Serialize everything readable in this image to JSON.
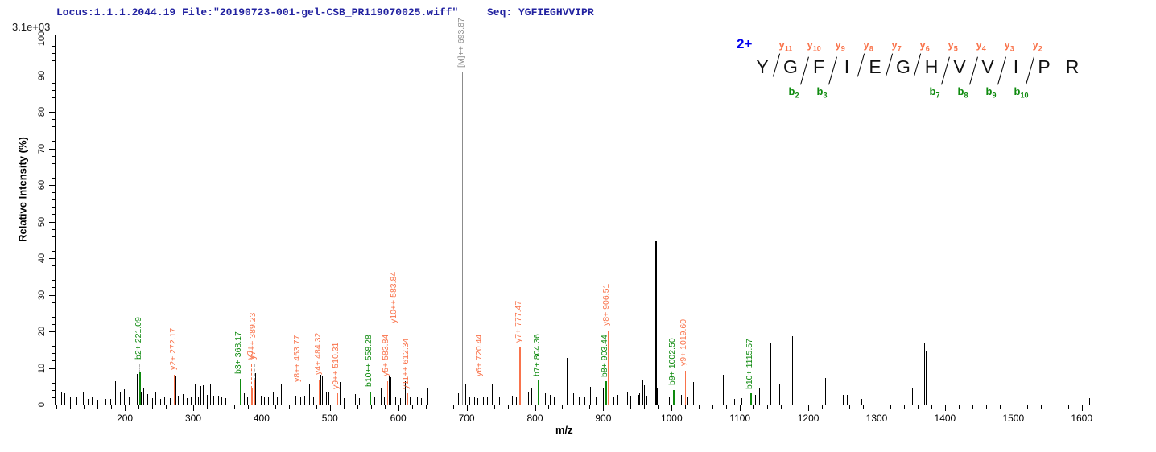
{
  "header": {
    "locus_file": "Locus:1.1.1.2044.19 File:\"20190723-001-gel-CSB_PR119070025.wiff\"",
    "seq_label": "Seq: YGFIEGHVVIPR"
  },
  "sequence_panel": {
    "charge_label": "2+",
    "y_prefix": "y",
    "b_prefix": "b",
    "residues": [
      "Y",
      "G",
      "F",
      "I",
      "E",
      "G",
      "H",
      "V",
      "V",
      "I",
      "P",
      "R"
    ],
    "gaps": [
      {
        "y": "11"
      },
      {
        "y": "10",
        "b": "2"
      },
      {
        "y": "9",
        "b": "3"
      },
      {
        "y": "8"
      },
      {
        "y": "7"
      },
      {
        "y": "6"
      },
      {
        "y": "5",
        "b": "7"
      },
      {
        "y": "4",
        "b": "8"
      },
      {
        "y": "3",
        "b": "9"
      },
      {
        "y": "2",
        "b": "10"
      },
      {}
    ]
  },
  "chart_data": {
    "type": "bar",
    "subtype": "ms2-centroid-spectrum",
    "title": "",
    "xlabel": "m/z",
    "ylabel": "Relative  Intensity (%)",
    "scale_label": "3.1e+03",
    "x_range": [
      100,
      1630
    ],
    "y_range": [
      0,
      100
    ],
    "x_major_ticks": [
      200,
      300,
      400,
      500,
      600,
      700,
      800,
      900,
      1000,
      1100,
      1200,
      1300,
      1400,
      1500,
      1600
    ],
    "x_minor_step": 20,
    "y_major_step": 10,
    "y_minor_step": 2,
    "grid": false,
    "colors": {
      "b_ion": "#0e8a0e",
      "y_ion": "#f9734b",
      "precursor": "#8c8c8c",
      "peak": "#000000"
    },
    "precursor": {
      "label": "[M]++ 693.87",
      "mz": 693.87,
      "pct": 91
    },
    "annotated_peaks": [
      {
        "label": "b2+ 221.09",
        "series": "b",
        "mz": 221.09,
        "pct": 8.8,
        "label_min": 11
      },
      {
        "label": "y2+ 272.17",
        "series": "y",
        "mz": 272.17,
        "pct": 8.2
      },
      {
        "label": "b3+ 368.17",
        "series": "b",
        "mz": 368.17,
        "pct": 7.0
      },
      {
        "label": "y3+",
        "series": "y",
        "mz": 385.3,
        "pct": 4.5,
        "label_min": 11,
        "leader": "series"
      },
      {
        "label": "y7++ 389.23",
        "series": "y",
        "mz": 389.23,
        "pct": 6.6,
        "label_min": 11
      },
      {
        "label": "y8++ 453.77",
        "series": "y",
        "mz": 453.77,
        "pct": 5.0
      },
      {
        "label": "y4+ 484.32",
        "series": "y",
        "mz": 484.32,
        "pct": 6.8
      },
      {
        "label": "y9++ 510.31",
        "series": "y",
        "mz": 510.31,
        "pct": 3.0
      },
      {
        "label": "b10++ 558.28",
        "series": "b",
        "mz": 558.28,
        "pct": 3.6
      },
      {
        "label": "y5+ 583.84",
        "series": "y",
        "mz": 583.84,
        "pct": 6.4
      },
      {
        "label": "y10++ 583.84",
        "series": "y",
        "mz": 594.5,
        "pct": 0,
        "label_min": 21,
        "label_only": true
      },
      {
        "label": "y11++ 612.34",
        "series": "y",
        "mz": 612.34,
        "pct": 3.0
      },
      {
        "label": "y6+ 720.44",
        "series": "y",
        "mz": 720.44,
        "pct": 6.5
      },
      {
        "label": "y7+ 777.47",
        "series": "y",
        "mz": 777.47,
        "pct": 15.6
      },
      {
        "label": "b7+ 804.36",
        "series": "b",
        "mz": 804.36,
        "pct": 6.5
      },
      {
        "label": "b8+ 903.44",
        "series": "b",
        "mz": 903.44,
        "pct": 6.3
      },
      {
        "label": "y8+ 906.51",
        "series": "y",
        "mz": 906.51,
        "pct": 20.2
      },
      {
        "label": "b9+ 1002.50",
        "series": "b",
        "mz": 1002.5,
        "pct": 4.0
      },
      {
        "label": "y9+ 1019.60",
        "series": "y",
        "mz": 1019.6,
        "pct": 9.2
      },
      {
        "label": "b10+ 1115.57",
        "series": "b",
        "mz": 1115.57,
        "pct": 3.0
      }
    ],
    "unlabeled_peaks": [
      [
        107,
        3.5
      ],
      [
        111,
        3.0
      ],
      [
        120,
        2.0
      ],
      [
        129,
        2.3
      ],
      [
        139,
        3.4
      ],
      [
        146,
        1.6
      ],
      [
        152,
        2.1
      ],
      [
        160,
        1.4
      ],
      [
        172,
        1.6
      ],
      [
        179,
        1.5
      ],
      [
        186,
        6.4
      ],
      [
        193,
        3.3
      ],
      [
        199,
        4.2
      ],
      [
        206,
        2.0
      ],
      [
        213,
        2.6
      ],
      [
        218,
        8.3
      ],
      [
        224,
        3.4
      ],
      [
        227,
        4.7
      ],
      [
        233,
        2.8
      ],
      [
        240,
        1.8
      ],
      [
        245,
        3.6
      ],
      [
        252,
        1.6
      ],
      [
        258,
        2.0
      ],
      [
        266,
        1.8
      ],
      [
        274,
        7.7
      ],
      [
        278,
        2.4
      ],
      [
        285,
        2.8
      ],
      [
        291,
        1.7
      ],
      [
        297,
        1.9
      ],
      [
        302,
        5.8
      ],
      [
        307,
        2.2
      ],
      [
        311,
        5.0
      ],
      [
        314,
        5.3
      ],
      [
        320,
        2.6
      ],
      [
        325,
        5.6
      ],
      [
        330,
        2.4
      ],
      [
        336,
        2.4
      ],
      [
        341,
        2.2
      ],
      [
        347,
        1.8
      ],
      [
        352,
        2.4
      ],
      [
        358,
        1.8
      ],
      [
        364,
        1.6
      ],
      [
        374,
        3.1
      ],
      [
        379,
        2.0
      ],
      [
        391,
        8.6
      ],
      [
        394,
        11.0
      ],
      [
        399,
        2.4
      ],
      [
        404,
        2.3
      ],
      [
        410,
        2.2
      ],
      [
        417,
        3.4
      ],
      [
        423,
        2.0
      ],
      [
        428,
        5.4
      ],
      [
        431,
        5.8
      ],
      [
        437,
        2.2
      ],
      [
        443,
        2.0
      ],
      [
        449,
        2.4
      ],
      [
        457,
        2.2
      ],
      [
        462,
        2.4
      ],
      [
        470,
        5.4
      ],
      [
        476,
        2.0
      ],
      [
        486,
        8.2
      ],
      [
        488,
        7.6
      ],
      [
        494,
        3.4
      ],
      [
        498,
        3.3
      ],
      [
        503,
        2.2
      ],
      [
        514,
        6.2
      ],
      [
        520,
        1.8
      ],
      [
        527,
        2.0
      ],
      [
        537,
        2.8
      ],
      [
        543,
        1.8
      ],
      [
        551,
        1.6
      ],
      [
        565,
        2.0
      ],
      [
        574,
        4.7
      ],
      [
        579,
        2.0
      ],
      [
        586,
        8.0
      ],
      [
        588,
        7.4
      ],
      [
        596,
        2.2
      ],
      [
        603,
        1.8
      ],
      [
        610,
        6.4
      ],
      [
        617,
        2.0
      ],
      [
        627,
        2.0
      ],
      [
        633,
        1.8
      ],
      [
        643,
        4.4
      ],
      [
        648,
        4.2
      ],
      [
        655,
        1.6
      ],
      [
        661,
        2.4
      ],
      [
        672,
        2.0
      ],
      [
        684,
        5.4
      ],
      [
        687,
        3.0
      ],
      [
        690,
        5.8
      ],
      [
        698,
        5.8
      ],
      [
        704,
        2.2
      ],
      [
        711,
        2.2
      ],
      [
        716,
        1.8
      ],
      [
        724,
        2.0
      ],
      [
        730,
        2.0
      ],
      [
        737,
        5.6
      ],
      [
        748,
        2.0
      ],
      [
        757,
        2.2
      ],
      [
        766,
        2.4
      ],
      [
        772,
        2.2
      ],
      [
        781,
        2.6
      ],
      [
        790,
        3.2
      ],
      [
        795,
        4.3
      ],
      [
        815,
        3.0
      ],
      [
        822,
        2.6
      ],
      [
        828,
        2.0
      ],
      [
        835,
        1.8
      ],
      [
        846,
        12.7
      ],
      [
        856,
        3.0
      ],
      [
        864,
        2.0
      ],
      [
        873,
        2.2
      ],
      [
        881,
        4.8
      ],
      [
        889,
        2.0
      ],
      [
        896,
        4.2
      ],
      [
        899,
        4.4
      ],
      [
        915,
        2.0
      ],
      [
        921,
        2.6
      ],
      [
        926,
        2.8
      ],
      [
        931,
        2.2
      ],
      [
        935,
        3.2
      ],
      [
        939,
        2.4
      ],
      [
        944,
        13.0
      ],
      [
        951,
        2.6
      ],
      [
        953,
        3.0
      ],
      [
        957,
        6.8
      ],
      [
        960,
        5.2
      ],
      [
        963,
        2.4
      ],
      [
        976,
        44.6,
        2
      ],
      [
        979,
        4.6
      ],
      [
        987,
        4.4
      ],
      [
        996,
        2.2
      ],
      [
        1004,
        3.0
      ],
      [
        1014,
        2.6
      ],
      [
        1023,
        2.2
      ],
      [
        1031,
        6.2
      ],
      [
        1047,
        2.0
      ],
      [
        1058,
        6.0
      ],
      [
        1075,
        8.2
      ],
      [
        1091,
        1.6
      ],
      [
        1102,
        1.8
      ],
      [
        1122,
        2.6
      ],
      [
        1128,
        4.6
      ],
      [
        1131,
        4.2
      ],
      [
        1145,
        16.9
      ],
      [
        1158,
        5.6
      ],
      [
        1176,
        18.7
      ],
      [
        1203,
        8.0
      ],
      [
        1225,
        7.3
      ],
      [
        1250,
        2.6
      ],
      [
        1257,
        2.6
      ],
      [
        1278,
        1.5
      ],
      [
        1352,
        4.3
      ],
      [
        1369,
        16.6
      ],
      [
        1372,
        14.8
      ],
      [
        1439,
        0.8
      ],
      [
        1611,
        1.8
      ]
    ]
  }
}
